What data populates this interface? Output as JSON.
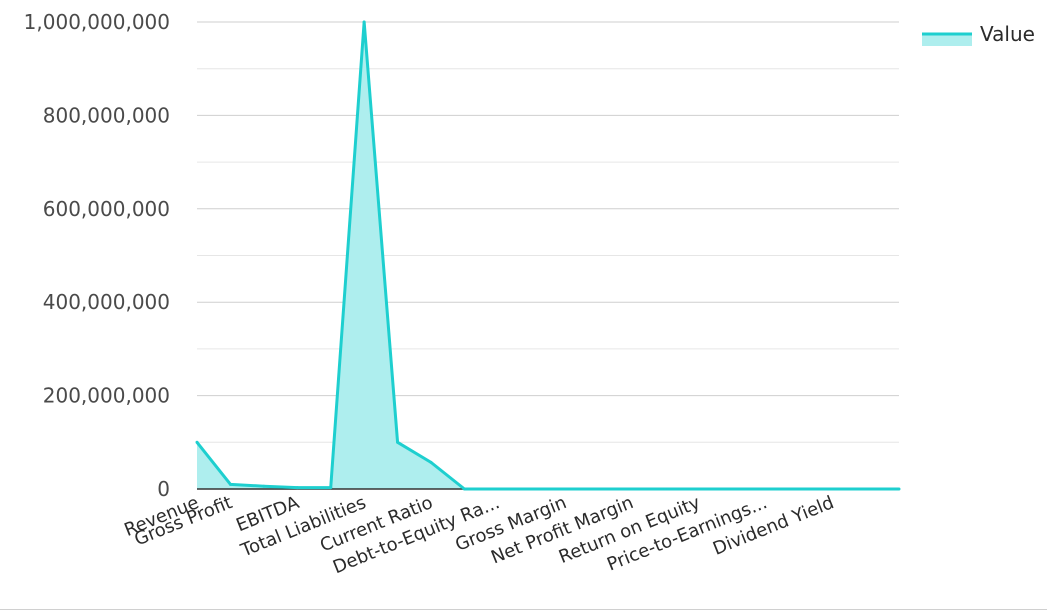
{
  "chart_data": {
    "type": "area",
    "categories": [
      "Revenue",
      "Gross Profit",
      "",
      "EBITDA",
      "",
      "Total Liabilities",
      "",
      "Current Ratio",
      "",
      "Debt-to-Equity Ra...",
      "",
      "Gross Margin",
      "",
      "Net Profit Margin",
      "",
      "Return on Equity",
      "",
      "Price-to-Earnings...",
      "",
      "Dividend Yield",
      "",
      ""
    ],
    "series": [
      {
        "name": "Value",
        "values": [
          100000000,
          10000000,
          6000000,
          3000000,
          3000000,
          1000000000,
          100000000,
          57000000,
          0,
          0,
          0,
          0,
          0,
          0,
          0,
          0,
          0,
          0,
          0,
          0,
          0,
          0
        ]
      }
    ],
    "ylim": [
      0,
      1000000000
    ],
    "yticks": [
      0,
      200000000,
      400000000,
      600000000,
      800000000,
      1000000000
    ],
    "ytick_labels": [
      "0",
      "200,000,000",
      "400,000,000",
      "600,000,000",
      "800,000,000",
      "1,000,000,000"
    ],
    "grid": true,
    "legend_position": "top-right",
    "line_color": "#1ecfcf",
    "fill_color": "#aeeeee",
    "grid_color": "#cfcfcf"
  }
}
